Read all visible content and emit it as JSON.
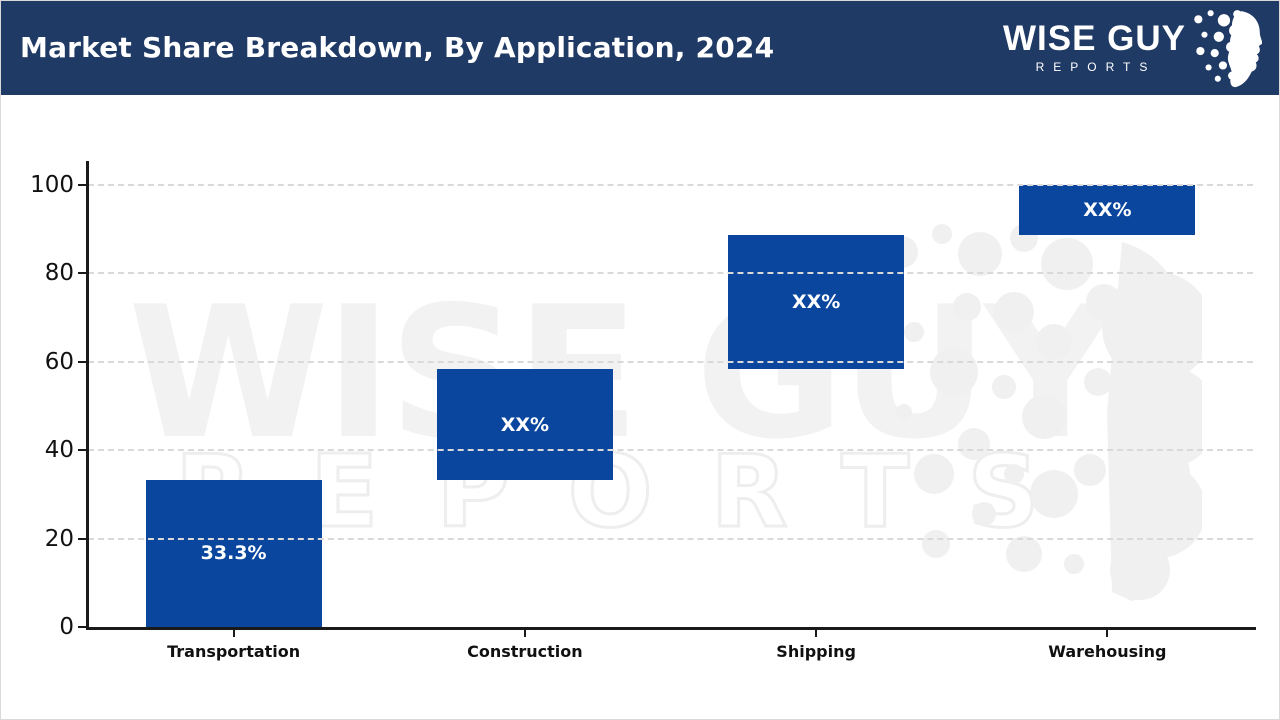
{
  "header": {
    "title": "Market Share Breakdown, By Application, 2024",
    "bg_color": "#203a66",
    "logo": {
      "line1": "WISE GUY",
      "line2": "REPORTS"
    }
  },
  "watermark": {
    "line1": "WISE GUY",
    "line2": "REPORTS",
    "color": "#f2f2f2"
  },
  "chart_data": {
    "type": "bar",
    "subtype": "waterfall",
    "title": "Market Share Breakdown, By Application, 2024",
    "categories": [
      "Transportation",
      "Construction",
      "Shipping",
      "Warehousing"
    ],
    "segments": [
      {
        "category": "Transportation",
        "start": 0,
        "end": 33.3,
        "increment": 33.3,
        "label": "33.3%"
      },
      {
        "category": "Construction",
        "start": 33.3,
        "end": 58.3,
        "increment": 25.0,
        "label": "XX%"
      },
      {
        "category": "Shipping",
        "start": 58.3,
        "end": 88.7,
        "increment": 30.4,
        "label": "XX%"
      },
      {
        "category": "Warehousing",
        "start": 88.7,
        "end": 100.0,
        "increment": 11.3,
        "label": "XX%"
      }
    ],
    "xlabel": "",
    "ylabel": "",
    "ylim": [
      0,
      100
    ],
    "yticks": [
      0,
      20,
      40,
      60,
      80,
      100
    ],
    "grid": "horizontal-dashed",
    "legend": "none",
    "bar_color": "#0a469e",
    "bar_label_color": "#ffffff",
    "axis_color": "#1a1a1a",
    "gridline_color": "#d9d9d9"
  }
}
